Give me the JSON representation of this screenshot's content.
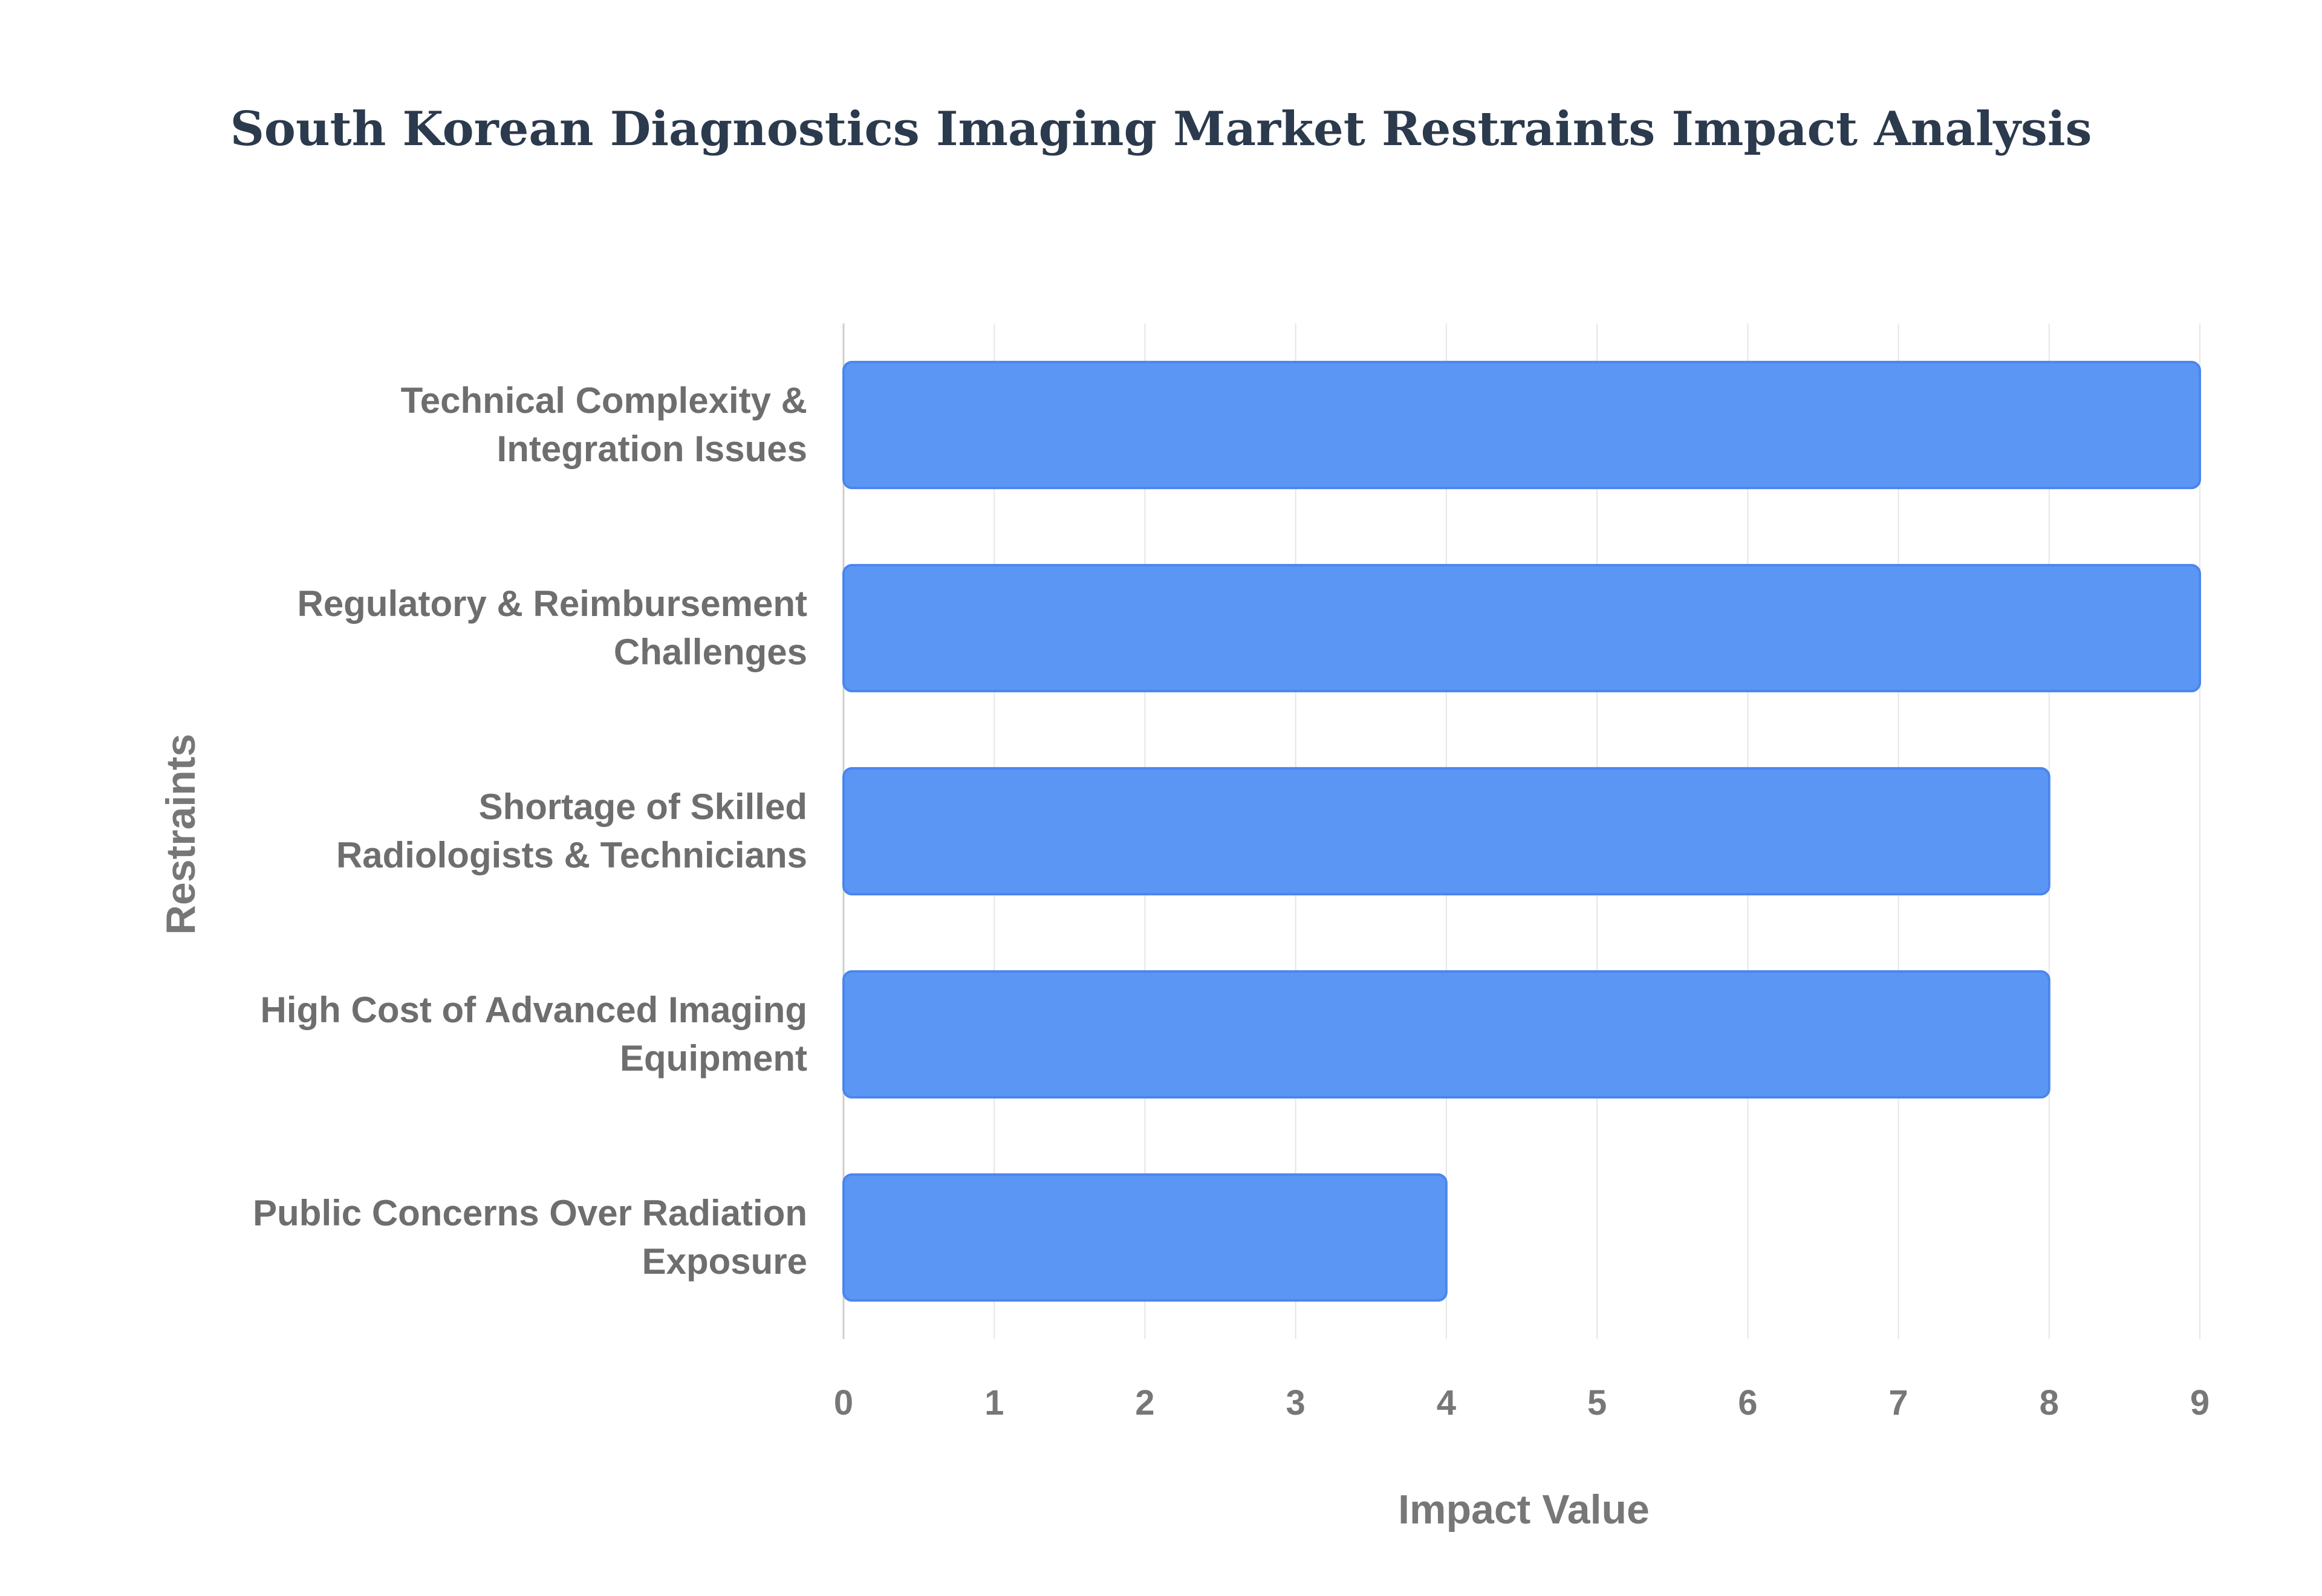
{
  "chart_data": {
    "type": "bar",
    "orientation": "horizontal",
    "title": "South Korean Diagnostics Imaging Market Restraints Impact Analysis",
    "xlabel": "Impact Value",
    "ylabel": "Restraints",
    "xlim": [
      0,
      9
    ],
    "xticks": [
      0,
      1,
      2,
      3,
      4,
      5,
      6,
      7,
      8,
      9
    ],
    "grid": true,
    "bar_color": "#5c96f5",
    "bar_edge_color": "#4a86ee",
    "categories": [
      [
        "Technical Complexity &",
        "Integration Issues"
      ],
      [
        "Regulatory & Reimbursement",
        "Challenges"
      ],
      [
        "Shortage of Skilled",
        "Radiologists & Technicians"
      ],
      [
        "High Cost of Advanced Imaging",
        "Equipment"
      ],
      [
        "Public Concerns Over Radiation",
        "Exposure"
      ]
    ],
    "values": [
      9,
      9,
      8,
      8,
      4
    ]
  }
}
